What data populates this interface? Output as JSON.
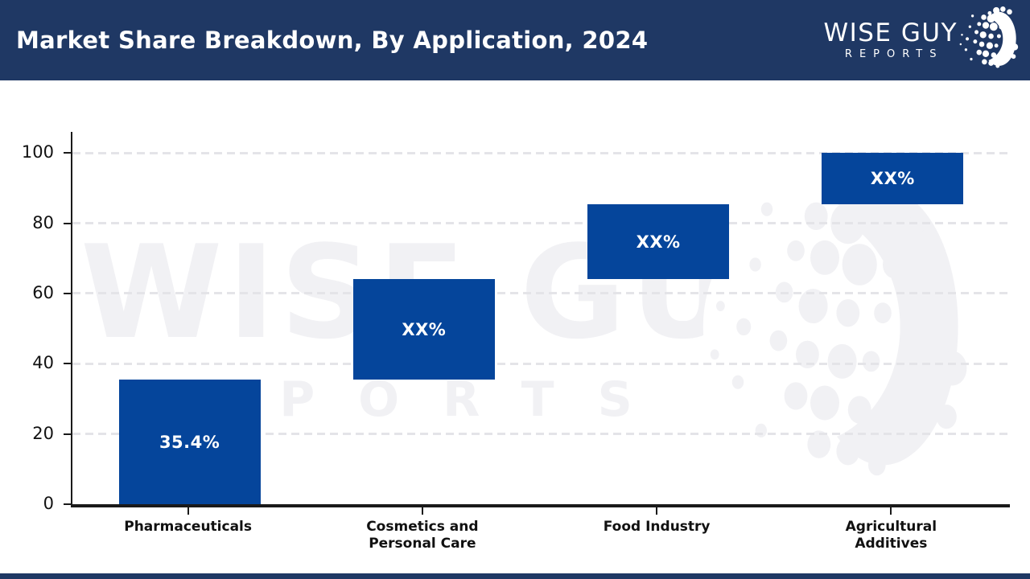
{
  "header": {
    "title": "Market Share Breakdown, By Application, 2024",
    "logo": {
      "line1": "WISE GUY",
      "line2": "REPORTS"
    }
  },
  "watermark": {
    "line1": "WISE GUY",
    "line2": "REPORTS"
  },
  "colors": {
    "header_bg": "#1f3864",
    "footer_bg": "#1f3864",
    "bar": "#05459b",
    "bar_label": "#ffffff",
    "grid": "#e4e4e8",
    "axis": "#1a1a1a",
    "watermark": "#f1f1f4"
  },
  "chart_data": {
    "type": "bar",
    "subtype": "waterfall-stacked-breakdown",
    "title": "Market Share Breakdown, By Application, 2024",
    "categories": [
      "Pharmaceuticals",
      "Cosmetics and\nPersonal Care",
      "Food Industry",
      "Agricultural\nAdditives"
    ],
    "segments": [
      {
        "category": "Pharmaceuticals",
        "start": 0,
        "end": 35.4,
        "value": 35.4,
        "label": "35.4%"
      },
      {
        "category": "Cosmetics and Personal Care",
        "start": 35.4,
        "end": 64.0,
        "value": 28.6,
        "label": "XX%"
      },
      {
        "category": "Food Industry",
        "start": 64.0,
        "end": 85.5,
        "value": 21.5,
        "label": "XX%"
      },
      {
        "category": "Agricultural Additives",
        "start": 85.5,
        "end": 100.0,
        "value": 14.5,
        "label": "XX%"
      }
    ],
    "xlabel": "",
    "ylabel": "",
    "yticks": [
      0,
      20,
      40,
      60,
      80,
      100
    ],
    "ylim": [
      0,
      106
    ],
    "grid": {
      "horizontal": true,
      "style": "dashed"
    },
    "legend": "none",
    "bar_color": "#05459b",
    "bar_label_color": "#ffffff"
  }
}
